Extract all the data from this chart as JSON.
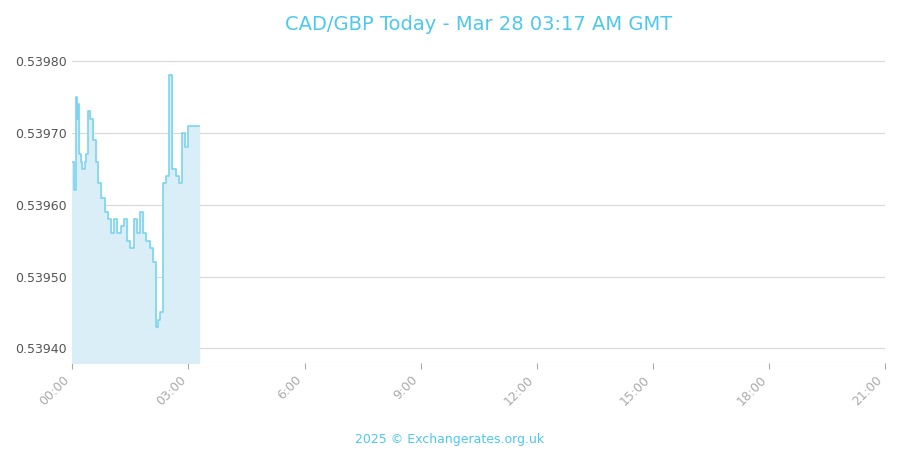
{
  "title": "CAD/GBP Today - Mar 28 03:17 AM GMT",
  "title_color": "#4dc8f0",
  "footer": "2025 © Exchangerates.org.uk",
  "footer_color": "#4dc8f0",
  "line_color": "#7dd4f0",
  "fill_color": "#daeef8",
  "background_color": "#ffffff",
  "grid_color": "#d8d8d8",
  "ylim": [
    0.53938,
    0.53982
  ],
  "yticks": [
    0.5394,
    0.5395,
    0.5396,
    0.5397,
    0.5398
  ],
  "xlim_minutes": [
    0,
    1260
  ],
  "xtick_positions": [
    0,
    180,
    360,
    540,
    720,
    900,
    1080,
    1260
  ],
  "xtick_labels": [
    "00:00",
    "03:00",
    "6:00",
    "9:00",
    "12:00",
    "15:00",
    "18:00",
    "21:00"
  ],
  "time_minutes": [
    0,
    3,
    5,
    7,
    9,
    11,
    13,
    15,
    17,
    19,
    22,
    25,
    28,
    32,
    36,
    40,
    45,
    50,
    55,
    60,
    65,
    70,
    75,
    80,
    85,
    90,
    95,
    100,
    105,
    110,
    115,
    120,
    125,
    130,
    133,
    136,
    140,
    145,
    150,
    155,
    160,
    165,
    170,
    175,
    180,
    185,
    190,
    195,
    197
  ],
  "values": [
    0.53966,
    0.53962,
    0.53975,
    0.53972,
    0.53974,
    0.53967,
    0.53966,
    0.53965,
    0.53965,
    0.53966,
    0.53967,
    0.53973,
    0.53972,
    0.53969,
    0.53966,
    0.53963,
    0.53961,
    0.53959,
    0.53958,
    0.53956,
    0.53958,
    0.53956,
    0.53957,
    0.53958,
    0.53955,
    0.53954,
    0.53958,
    0.53956,
    0.53959,
    0.53956,
    0.53955,
    0.53954,
    0.53952,
    0.53943,
    0.53944,
    0.53945,
    0.53963,
    0.53964,
    0.53978,
    0.53965,
    0.53964,
    0.53963,
    0.5397,
    0.53968,
    0.53971,
    0.53971,
    0.53971,
    0.53971,
    0.53971
  ]
}
